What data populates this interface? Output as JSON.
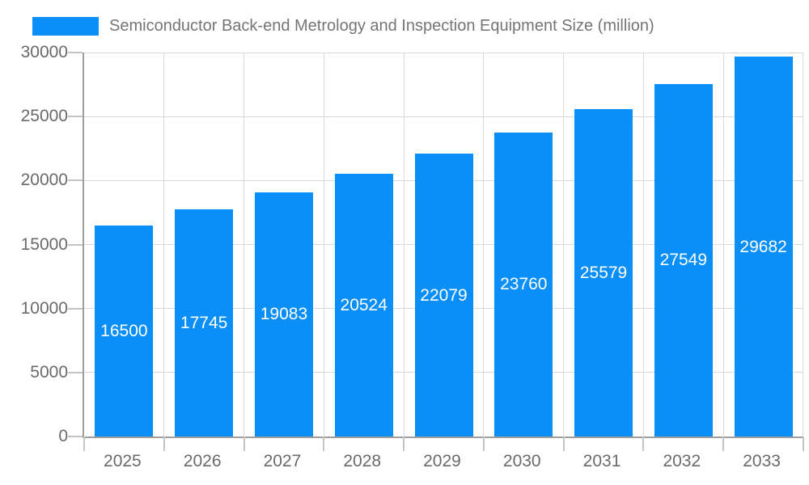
{
  "chart_data": {
    "type": "bar",
    "title": "Semiconductor Back-end Metrology and Inspection Equipment Size (million)",
    "categories": [
      "2025",
      "2026",
      "2027",
      "2028",
      "2029",
      "2030",
      "2031",
      "2032",
      "2033"
    ],
    "values": [
      16500,
      17745,
      19083,
      20524,
      22079,
      23760,
      25579,
      27549,
      29682
    ],
    "series": [
      {
        "name": "Semiconductor Back-end Metrology and Inspection Equipment Size (million)",
        "values": [
          16500,
          17745,
          19083,
          20524,
          22079,
          23760,
          25579,
          27549,
          29682
        ]
      }
    ],
    "xlabel": "",
    "ylabel": "",
    "ylim": [
      0,
      30000
    ],
    "y_ticks": [
      0,
      5000,
      10000,
      15000,
      20000,
      25000,
      30000
    ],
    "grid": true,
    "legend_position": "top-left",
    "value_labels": "centered-inside-bars",
    "colors": {
      "bar": "#0A8FF8",
      "value_label": "#ffffff",
      "grid_line": "#d9d9d9",
      "axis_line": "#9e9e9e",
      "tick": "#c4c4c4",
      "axis_label": "#6a6a6a",
      "title": "#757575",
      "background": "#ffffff"
    }
  }
}
